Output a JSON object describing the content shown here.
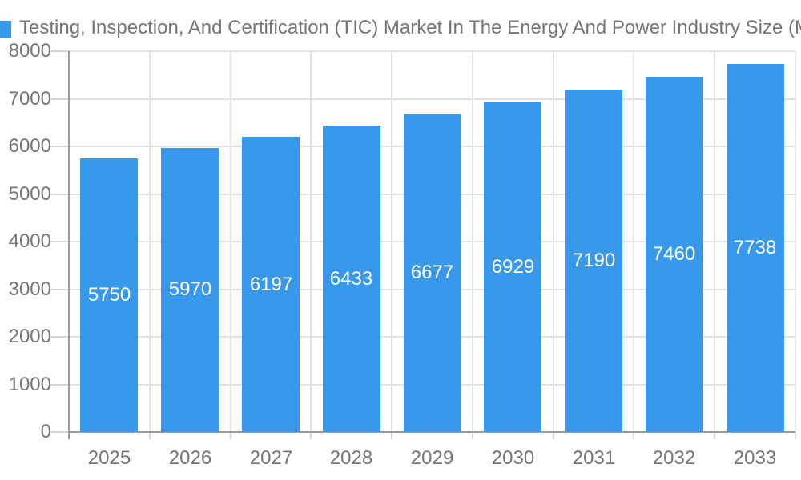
{
  "colors": {
    "accent": "#3899EC",
    "title_text": "#757575",
    "tick_text": "#757575",
    "bar_label_text": "#FFFFFF",
    "gridline": "#E2E2E2",
    "tick_mark": "#D4D4D4",
    "axis_line": "#9A9A9A",
    "background": "#FFFFFF"
  },
  "chart_data": {
    "type": "bar",
    "title": "Testing, Inspection, And Certification (TIC) Market In The Energy And Power Industry Size (M",
    "title_truncated": true,
    "categories": [
      "2025",
      "2026",
      "2027",
      "2028",
      "2029",
      "2030",
      "2031",
      "2032",
      "2033"
    ],
    "values": [
      5750,
      5970,
      6197,
      6433,
      6677,
      6929,
      7190,
      7460,
      7738
    ],
    "bar_value_labels": [
      5750,
      5970,
      6197,
      6433,
      6677,
      6929,
      7190,
      7460,
      7738
    ],
    "xlabel": "",
    "ylabel": "",
    "ylim": [
      0,
      8000
    ],
    "ytick_step": 1000,
    "yticks": [
      0,
      1000,
      2000,
      3000,
      4000,
      5000,
      6000,
      7000,
      8000
    ],
    "grid": true,
    "legend_position": "top-left",
    "legend_marker": "bar-series-swatch"
  }
}
